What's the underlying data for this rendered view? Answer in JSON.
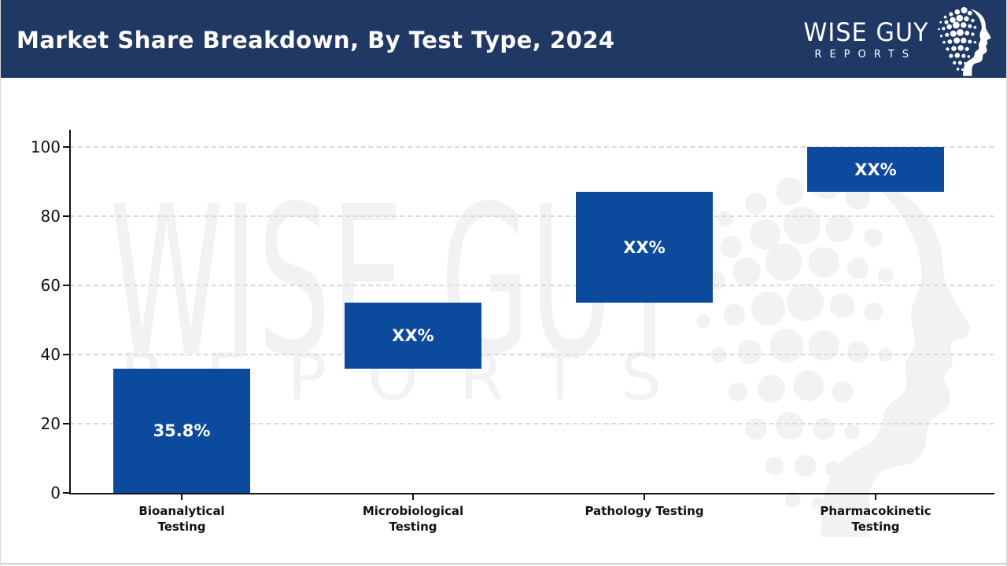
{
  "header": {
    "title": "Market Share Breakdown, By Test Type, 2024",
    "logo": {
      "name": "WISE GUY",
      "subname": "REPORTS",
      "face_icon": "dotted-head-profile"
    }
  },
  "watermark": {
    "text": "WISE GUY",
    "subtext": "REPORTS",
    "face_icon": "dotted-head-profile"
  },
  "chart_data": {
    "type": "bar",
    "subtype": "stacked-waterfall",
    "title": "Market Share Breakdown, By Test Type, 2024",
    "categories": [
      "Bioanalytical Testing",
      "Microbiological Testing",
      "Pathology Testing",
      "Pharmacokinetic Testing"
    ],
    "category_lines": [
      [
        "Bioanalytical",
        "Testing"
      ],
      [
        "Microbiological",
        "Testing"
      ],
      [
        "Pathology Testing"
      ],
      [
        "Pharmacokinetic",
        "Testing"
      ]
    ],
    "segments": [
      {
        "category": "Bioanalytical Testing",
        "start": 0,
        "end": 35.8,
        "label": "35.8%"
      },
      {
        "category": "Microbiological Testing",
        "start": 35.8,
        "end": 55,
        "label": "XX%"
      },
      {
        "category": "Pathology Testing",
        "start": 55,
        "end": 87,
        "label": "XX%"
      },
      {
        "category": "Pharmacokinetic Testing",
        "start": 87,
        "end": 100,
        "label": "XX%"
      }
    ],
    "xlabel": "",
    "ylabel": "",
    "ylim": [
      0,
      105
    ],
    "yticks": [
      0,
      20,
      40,
      60,
      80,
      100
    ],
    "grid": "horizontal-dashed",
    "legend": "none",
    "colors": {
      "bar": "#0b4a9c",
      "bar_label": "#ffffff",
      "axis": "#111111",
      "gridline": "#d9d9d9",
      "header_bg": "#1f3864",
      "watermark": "#f2f2f2"
    }
  }
}
